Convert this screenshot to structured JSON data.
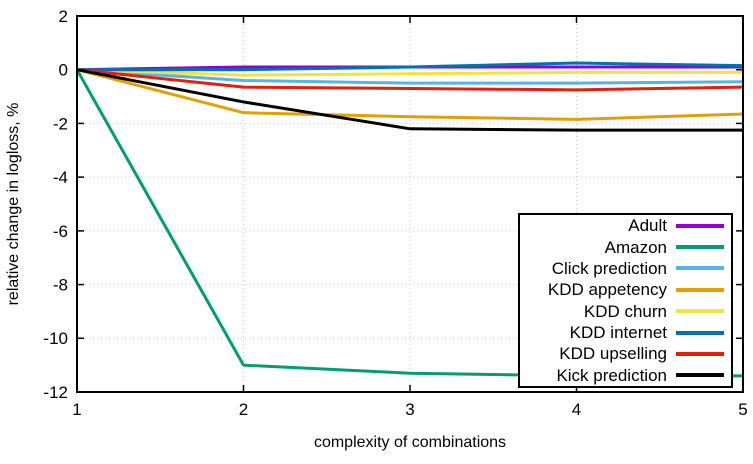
{
  "chart_data": {
    "type": "line",
    "title": "",
    "xlabel": "complexity of combinations",
    "ylabel": "relative change in logloss, %",
    "x": [
      1,
      2,
      3,
      4,
      5
    ],
    "xlim": [
      1,
      5
    ],
    "ylim": [
      -12,
      2
    ],
    "xticks": [
      1,
      2,
      3,
      4,
      5
    ],
    "yticks": [
      2,
      0,
      -2,
      -4,
      -6,
      -8,
      -10,
      -12
    ],
    "grid": true,
    "legend_position": "bottom-right",
    "background_color": "#ffffff",
    "grid_color": "#c8c8c8",
    "border_color": "#000000",
    "series": [
      {
        "name": "Adult",
        "color": "#9400d3",
        "values": [
          0,
          0.1,
          0.1,
          0.1,
          0.1
        ]
      },
      {
        "name": "Amazon",
        "color": "#009e73",
        "values": [
          0,
          -11.0,
          -11.3,
          -11.4,
          -11.4
        ]
      },
      {
        "name": "Click prediction",
        "color": "#56b4e9",
        "values": [
          0,
          -0.4,
          -0.5,
          -0.5,
          -0.45
        ]
      },
      {
        "name": "KDD appetency",
        "color": "#e69f00",
        "values": [
          0,
          -1.6,
          -1.75,
          -1.85,
          -1.65
        ]
      },
      {
        "name": "KDD churn",
        "color": "#f0e442",
        "values": [
          0,
          -0.2,
          -0.15,
          -0.1,
          -0.1
        ]
      },
      {
        "name": "KDD internet",
        "color": "#0072b2",
        "values": [
          0,
          0.0,
          0.1,
          0.25,
          0.15
        ]
      },
      {
        "name": "KDD upselling",
        "color": "#e51e10",
        "values": [
          0,
          -0.65,
          -0.7,
          -0.75,
          -0.65
        ]
      },
      {
        "name": "Kick prediction",
        "color": "#000000",
        "values": [
          0,
          -1.2,
          -2.2,
          -2.25,
          -2.25
        ]
      }
    ]
  }
}
